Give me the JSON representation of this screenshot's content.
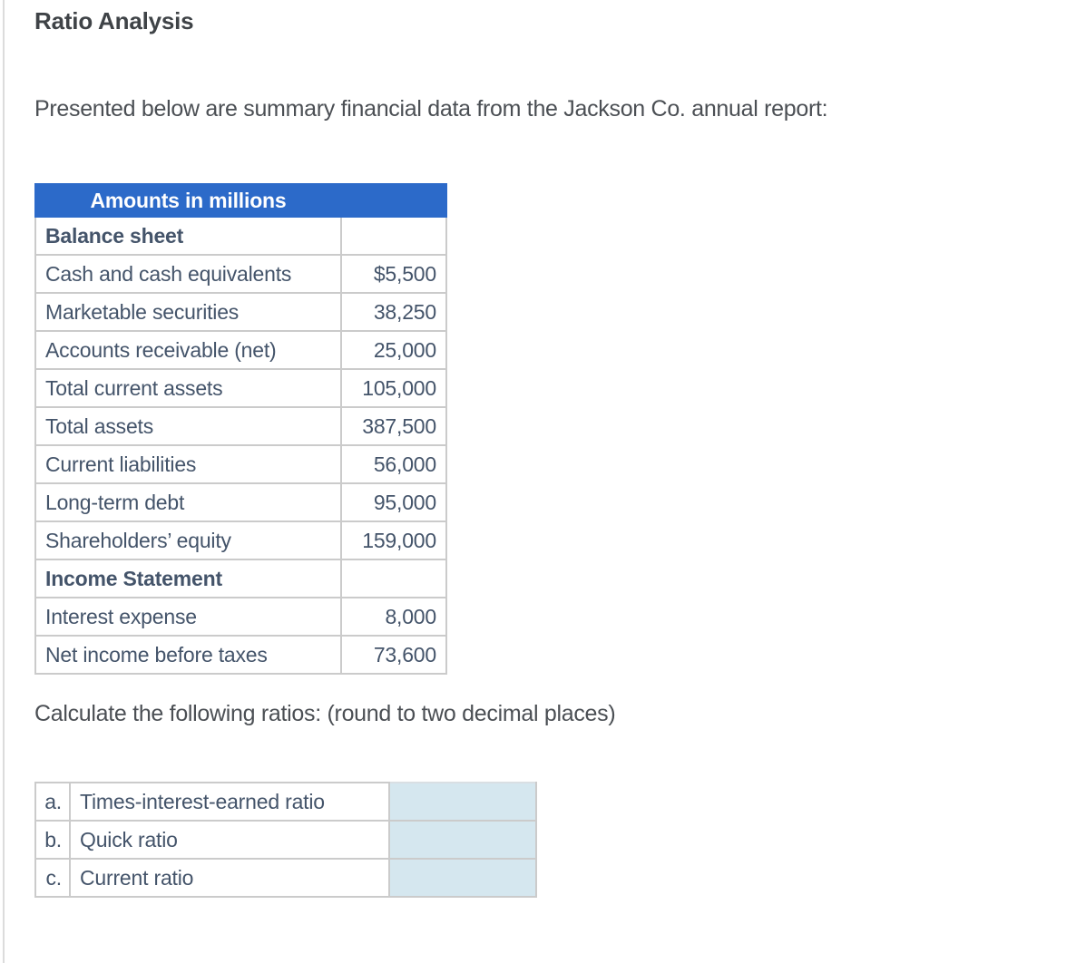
{
  "page": {
    "title": "Ratio Analysis",
    "intro": "Presented below are summary financial data from the Jackson Co. annual report:",
    "instruction": "Calculate the following ratios: (round to two decimal places)"
  },
  "financial_table": {
    "header": "Amounts in millions",
    "rows": [
      {
        "label": "Balance sheet",
        "value": ""
      },
      {
        "label": "Cash and cash equivalents",
        "value": "$5,500"
      },
      {
        "label": "Marketable securities",
        "value": "38,250"
      },
      {
        "label": "Accounts receivable (net)",
        "value": "25,000"
      },
      {
        "label": "Total current assets",
        "value": "105,000"
      },
      {
        "label": "Total assets",
        "value": "387,500"
      },
      {
        "label": "Current liabilities",
        "value": "56,000"
      },
      {
        "label": "Long-term debt",
        "value": "95,000"
      },
      {
        "label": "Shareholders’ equity",
        "value": "159,000"
      },
      {
        "label": "Income Statement",
        "value": ""
      },
      {
        "label": "Interest expense",
        "value": "8,000"
      },
      {
        "label": "Net income before taxes",
        "value": "73,600"
      }
    ]
  },
  "ratio_table": {
    "rows": [
      {
        "letter": "a.",
        "label": "Times-interest-earned ratio",
        "answer": ""
      },
      {
        "letter": "b.",
        "label": "Quick ratio",
        "answer": ""
      },
      {
        "letter": "c.",
        "label": "Current ratio",
        "answer": ""
      }
    ]
  },
  "colors": {
    "header_blue": "#2c6ac9",
    "answer_cell_blue": "#d5e7ef",
    "border_gray": "#cbcbcb",
    "table_text": "#44546a"
  }
}
